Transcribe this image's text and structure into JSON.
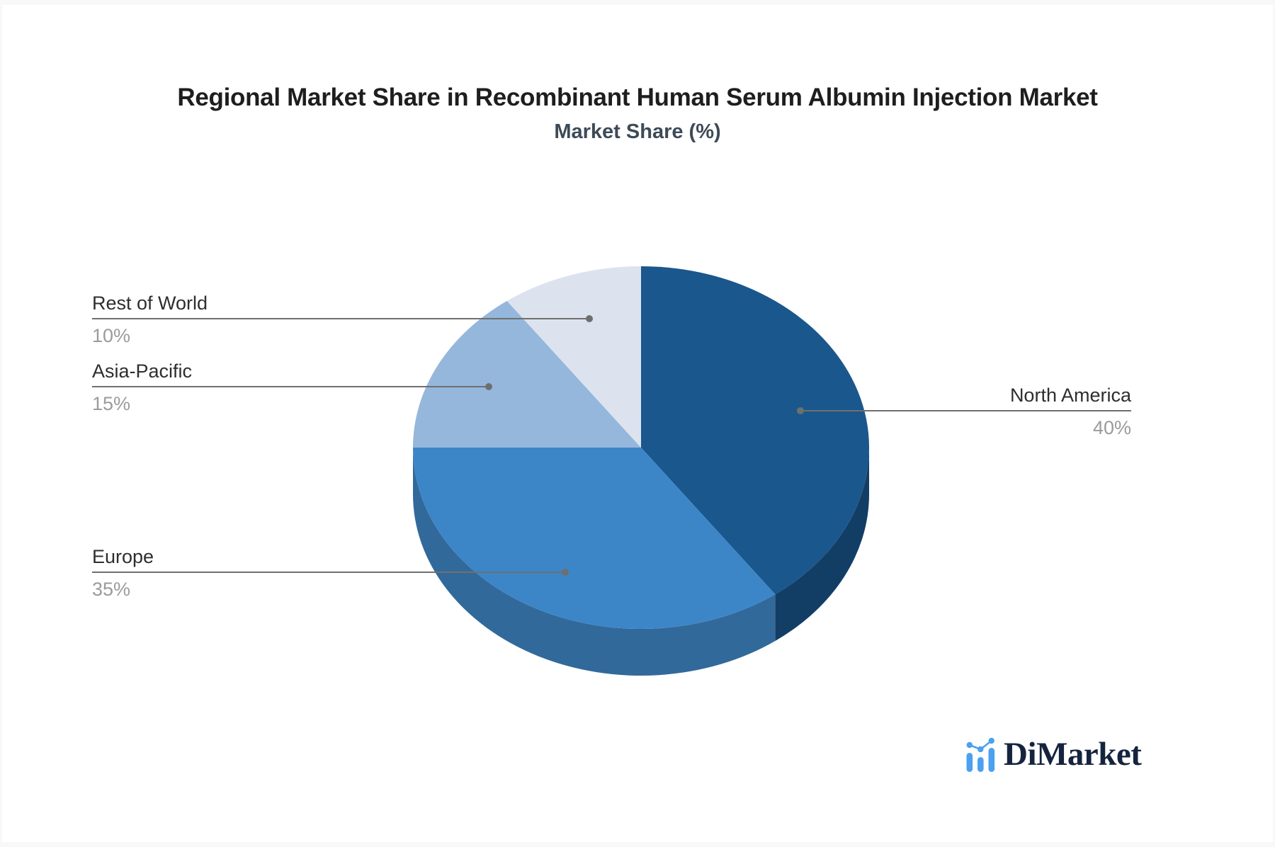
{
  "chart_data": {
    "type": "pie",
    "style": "3d",
    "title": "Regional Market Share in Recombinant Human Serum Albumin Injection Market",
    "subtitle": "Market Share (%)",
    "unit": "%",
    "direction": "clockwise",
    "start_angle_deg": 0,
    "label_style": "callout-leader-lines",
    "legend": "none",
    "background_color": "#ffffff",
    "leader_line_color": "#6F6F6F",
    "label_text_color": "#2E2E2E",
    "value_text_color": "#9B9B9B",
    "slices": [
      {
        "label": "North America",
        "value": 40,
        "value_label": "40%",
        "color": "#1A578D",
        "side_color": "#123E66"
      },
      {
        "label": "Europe",
        "value": 35,
        "value_label": "35%",
        "color": "#3C86C8",
        "side_color": "#32699B"
      },
      {
        "label": "Asia-Pacific",
        "value": 15,
        "value_label": "15%",
        "color": "#95B7DC",
        "side_color": "#7FA3C9"
      },
      {
        "label": "Rest of World",
        "value": 10,
        "value_label": "10%",
        "color": "#DCE3EE",
        "side_color": "#C2CCD9"
      }
    ]
  },
  "logo": {
    "text": "DiMarket",
    "icon": "bar-chart-trend-icon",
    "icon_color": "#4BA1F0",
    "text_color": "#15243E"
  }
}
